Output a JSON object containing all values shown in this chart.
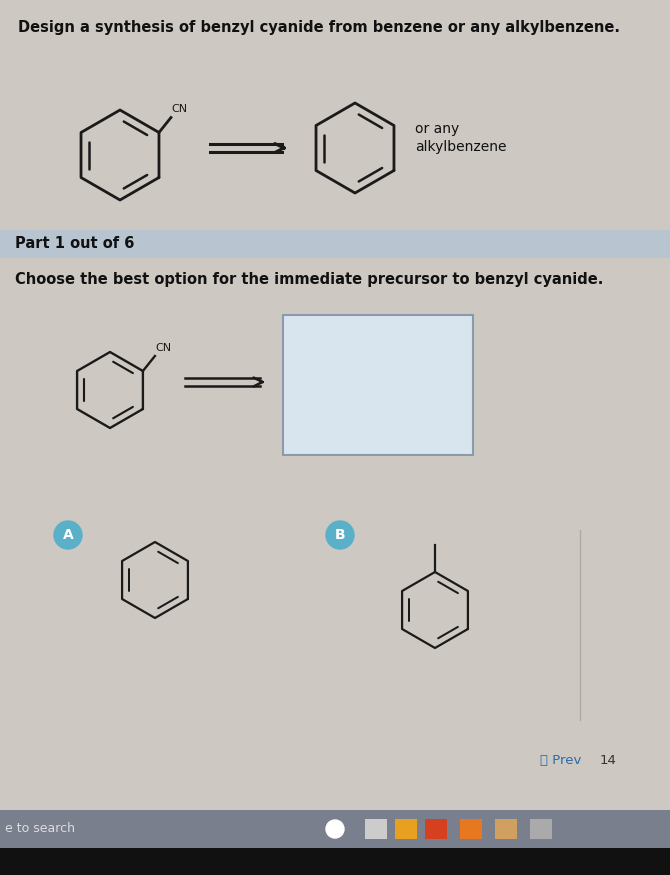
{
  "bg_color": "#cdc9c2",
  "title_text": "Design a synthesis of benzyl cyanide from benzene or any alkylbenzene.",
  "title_fontsize": 10.5,
  "part_label": "Part 1 out of 6",
  "part_bg": "#b8c4d0",
  "question_text": "Choose the best option for the immediate precursor to benzyl cyanide.",
  "or_any_text": "or any\nalkylbenzene",
  "prev_text": "〈 Prev",
  "page_num": "14",
  "taskbar_bg": "#7a7f8e",
  "taskbar_text": "e to search",
  "molecule_color": "#1a1a1a",
  "answer_box_color": "#8a9aaa",
  "circ_color": "#5ab0c8"
}
